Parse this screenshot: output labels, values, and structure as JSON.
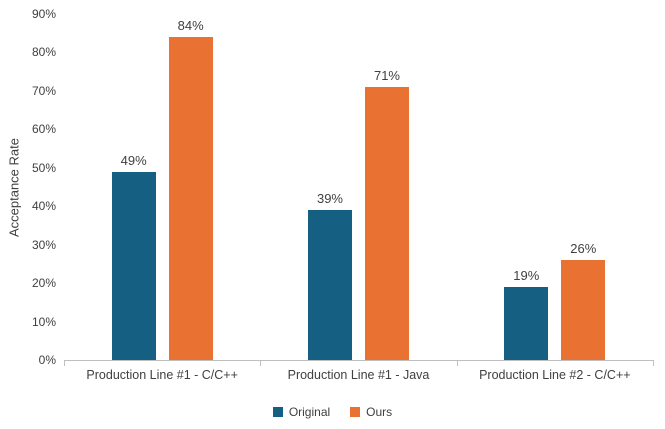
{
  "chart_data": {
    "type": "bar",
    "title": "",
    "xlabel": "",
    "ylabel": "Acceptance Rate",
    "categories": [
      "Production Line #1 - C/C++",
      "Production Line #1 - Java",
      "Production Line #2 - C/C++"
    ],
    "series": [
      {
        "name": "Original",
        "color": "#156082",
        "values": [
          49,
          39,
          19
        ]
      },
      {
        "name": "Ours",
        "color": "#E97132",
        "values": [
          84,
          71,
          26
        ]
      }
    ],
    "data_label_format": "percent",
    "ylim": [
      0,
      90
    ],
    "ytick_step": 10,
    "ytick_labels": [
      "0%",
      "10%",
      "20%",
      "30%",
      "40%",
      "50%",
      "60%",
      "70%",
      "80%",
      "90%"
    ],
    "grid": false,
    "legend_position": "bottom"
  }
}
